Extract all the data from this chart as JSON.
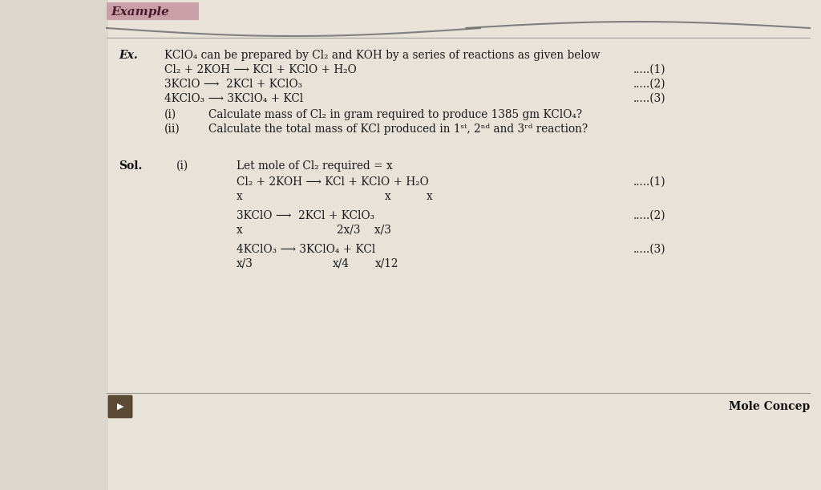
{
  "background_color": "#d4cfc8",
  "page_bg": "#e8e2d8",
  "header_bg": "#c9a0a8",
  "header_text": "Example",
  "header_text_color": "#4a1a2a",
  "ex_label": "Ex.",
  "ex_line1": "KClO₄ can be prepared by Cl₂ and KOH by a series of reactions as given below",
  "eq1": "Cl₂ + 2KOH ⟶ KCl + KClO + H₂O",
  "eq1_num": ".....(1)",
  "eq2": "3KClO ⟶  2KCl + KClO₃",
  "eq2_num": ".....(2)",
  "eq3": "4KClO₃ ⟶ 3KClO₄ + KCl",
  "eq3_num": ".....(3)",
  "q1_i": "(i)",
  "q1_text": "Calculate mass of Cl₂ in gram required to produce 1385 gm KClO₄?",
  "q2_ii": "(ii)",
  "q2_text": "Calculate the total mass of KCl produced in 1ˢᵗ, 2ⁿᵈ and 3ʳᵈ reaction?",
  "sol_label": "Sol.",
  "sol_i_label": "(i)",
  "sol_line1": "Let mole of Cl₂ required = x",
  "sol_eq1": "Cl₂ + 2KOH ⟶ KCl + KClO + H₂O",
  "sol_eq1_num": ".....(1)",
  "sol_eq1_x1": "x",
  "sol_eq1_x2": "x",
  "sol_eq1_x3": "x",
  "sol_eq2": "3KClO ⟶  2KCl + KClO₃",
  "sol_eq2_num": ".....(2)",
  "sol_eq2_x": "x",
  "sol_eq2_sub": "2x/3    x/3",
  "sol_eq3": "4KClO₃ ⟶ 3KClO₄ + KCl",
  "sol_eq3_num": ".....(3)",
  "sol_eq3_sub1": "x/3",
  "sol_eq3_sub2": "x/4",
  "sol_eq3_sub3": "x/12",
  "footer_text": "Mole Concep",
  "text_color": "#1a1a1a",
  "bold_color": "#111111",
  "line_color": "#666666"
}
